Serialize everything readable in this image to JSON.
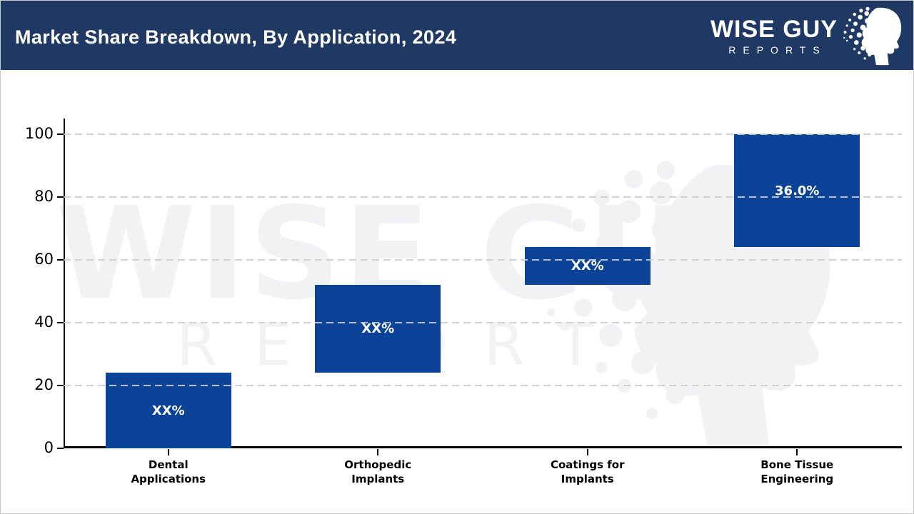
{
  "header": {
    "title": "Market Share Breakdown, By Application, 2024",
    "logo": {
      "line1": "WISE GUY",
      "line2": "REPORTS"
    }
  },
  "watermark": {
    "line1": "WISE GUY",
    "line2": "REPORTS"
  },
  "colors": {
    "header_bg": "#1f3864",
    "bar": "#0b4399",
    "bar_label": "#ffffff",
    "gridline": "#d4d4d7",
    "watermark": "#f2f2f5"
  },
  "chart_data": {
    "type": "bar",
    "subtype": "waterfall",
    "title": "Market Share Breakdown, By Application, 2024",
    "xlabel": "",
    "ylabel": "",
    "ylim": [
      0,
      105
    ],
    "yticks": [
      0,
      20,
      40,
      60,
      80,
      100
    ],
    "grid": "horizontal-dashed",
    "legend": "none",
    "categories": [
      "Dental Applications",
      "Orthopedic Implants",
      "Coatings for Implants",
      "Bone Tissue Engineering"
    ],
    "category_label_lines": [
      [
        "Dental",
        "Applications"
      ],
      [
        "Orthopedic",
        "Implants"
      ],
      [
        "Coatings for",
        "Implants"
      ],
      [
        "Bone Tissue",
        "Engineering"
      ]
    ],
    "series": [
      {
        "name": "Market Share %",
        "segments": [
          {
            "category": "Dental Applications",
            "start": 0,
            "end": 24,
            "value": 24,
            "label": "XX%"
          },
          {
            "category": "Orthopedic Implants",
            "start": 24,
            "end": 52,
            "value": 28,
            "label": "XX%"
          },
          {
            "category": "Coatings for Implants",
            "start": 52,
            "end": 64,
            "value": 12,
            "label": "XX%"
          },
          {
            "category": "Bone Tissue Engineering",
            "start": 64,
            "end": 100,
            "value": 36,
            "label": "36.0%"
          }
        ]
      }
    ]
  }
}
